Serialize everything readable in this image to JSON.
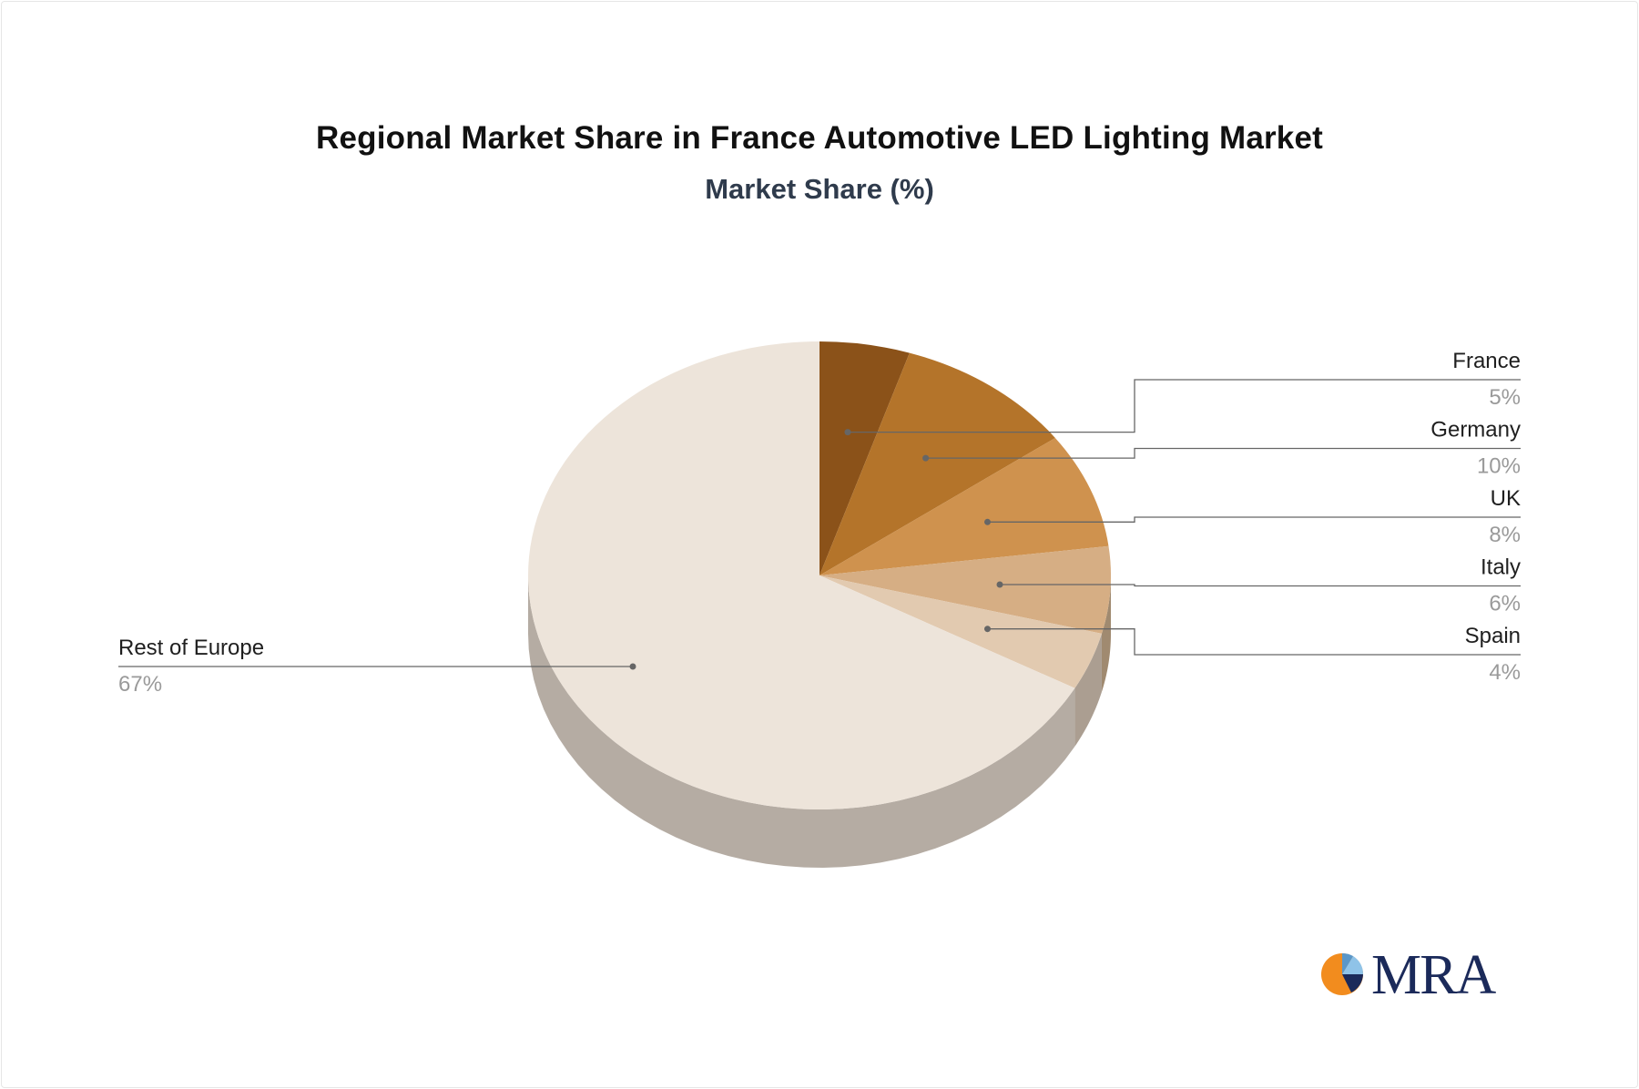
{
  "header": {
    "title": "Regional Market Share in France Automotive LED Lighting Market",
    "subtitle": "Market Share (%)"
  },
  "logo": {
    "text": "MRA",
    "icon": "mra-logo-icon"
  },
  "chart_data": {
    "type": "pie",
    "title": "Regional Market Share in France Automotive LED Lighting Market",
    "subtitle": "Market Share (%)",
    "style": "3d",
    "categories": [
      "France",
      "Germany",
      "UK",
      "Italy",
      "Spain",
      "Rest of Europe"
    ],
    "values": [
      5,
      10,
      8,
      6,
      4,
      67
    ],
    "value_labels": [
      "5%",
      "10%",
      "8%",
      "6%",
      "4%",
      "67%"
    ],
    "colors": [
      "#8b5219",
      "#b4742a",
      "#cf924e",
      "#d6ae84",
      "#e2cab0",
      "#ede4da"
    ],
    "side_colors": [
      "#6b4014",
      "#8a5a22",
      "#9c7048",
      "#a08a70",
      "#ab9e91",
      "#b5aca3"
    ],
    "legend": "none"
  }
}
